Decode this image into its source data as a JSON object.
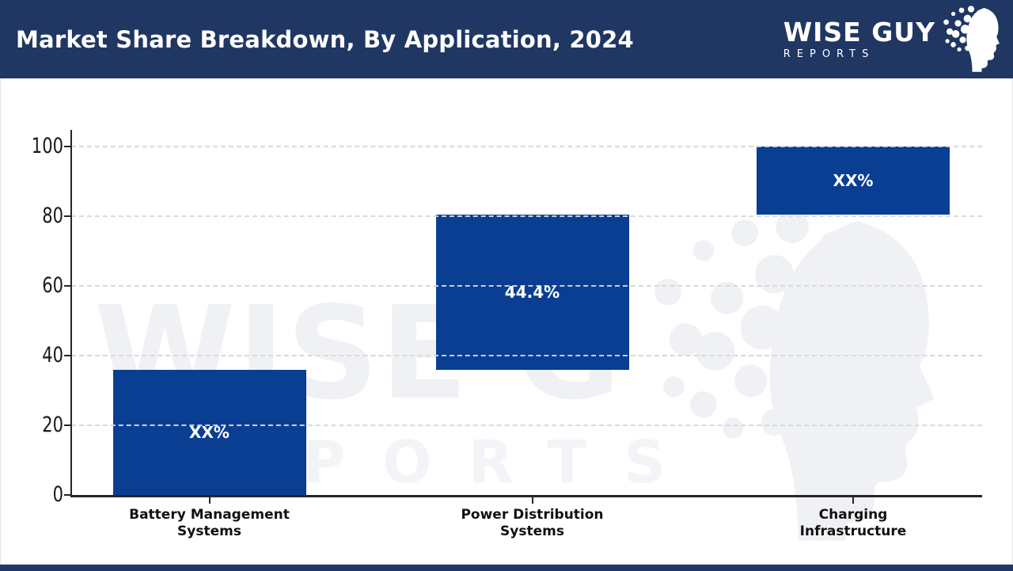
{
  "header": {
    "title": "Market Share Breakdown, By Application, 2024",
    "logo": {
      "name": "WISE GUY",
      "sub": "REPORTS"
    }
  },
  "watermark": {
    "text_main": "WISE G",
    "text_sub": "REPORTS"
  },
  "chart_data": {
    "type": "bar",
    "variant": "waterfall",
    "title": "Market Share Breakdown, By Application, 2024",
    "categories": [
      "Battery Management\nSystems",
      "Power Distribution\nSystems",
      "Charging\nInfrastructure"
    ],
    "segments": [
      {
        "category": "Battery Management Systems",
        "start": 0,
        "end": 36,
        "label": "XX%"
      },
      {
        "category": "Power Distribution Systems",
        "start": 36,
        "end": 80.4,
        "label": "44.4%"
      },
      {
        "category": "Charging Infrastructure",
        "start": 80.4,
        "end": 100,
        "label": "XX%"
      }
    ],
    "ylim": [
      0,
      100
    ],
    "yticks": [
      0,
      20,
      40,
      60,
      80,
      100
    ],
    "grid": "horizontal-dashed",
    "legend": "none",
    "bar_color": "#0a3e93",
    "value_label_color": "#ffffff"
  },
  "colors": {
    "header_bg": "#203663",
    "footer_bg": "#203663",
    "bar": "#0a3e93",
    "gridline": "#d7d7d7",
    "axis": "#262626",
    "watermark": "#eff1f4"
  }
}
